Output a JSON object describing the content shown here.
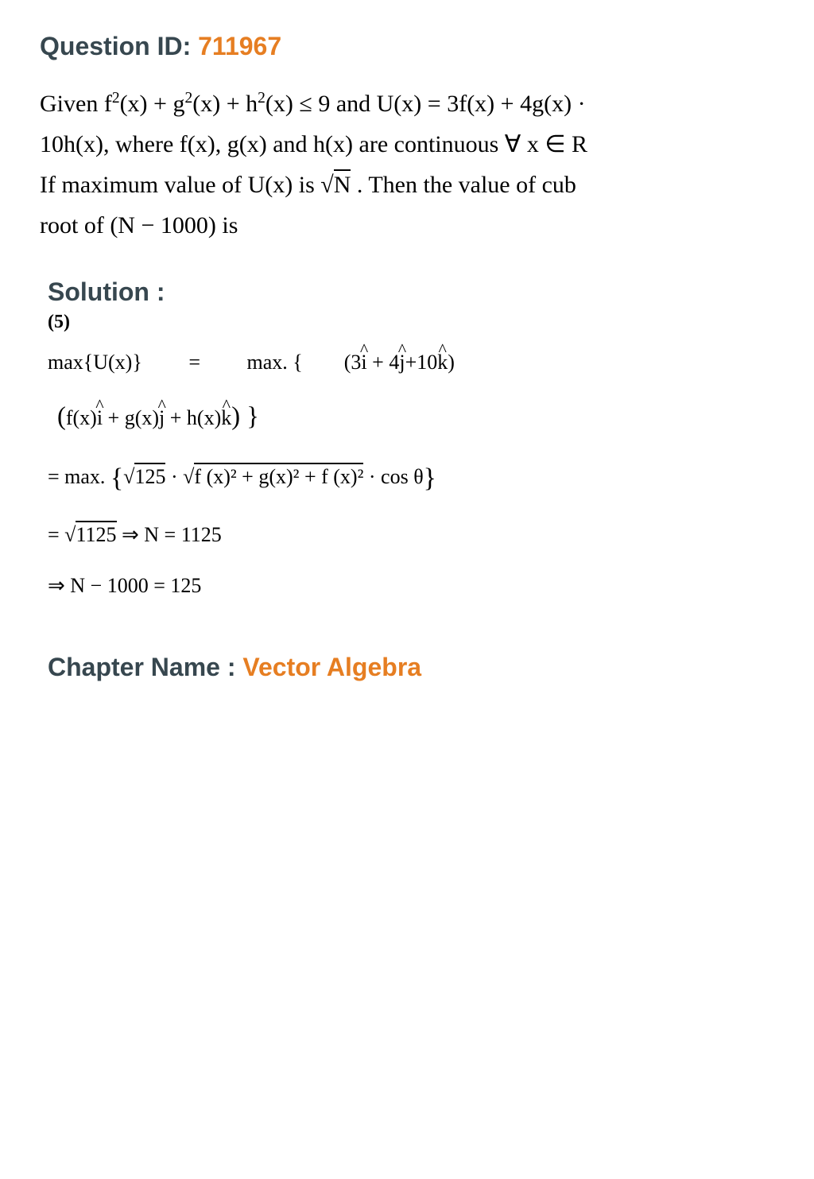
{
  "header": {
    "question_id_label": "Question ID:",
    "question_id_value": "711967"
  },
  "problem": {
    "line1_a": "Given f",
    "line1_b": "(x) + g",
    "line1_c": "(x) + h",
    "line1_d": "(x) ≤ 9 and U(x) = 3f(x) + 4g(x) ·",
    "line2": "10h(x), where f(x), g(x) and h(x) are continuous ∀ x ∈ R",
    "line3_a": "If maximum value of U(x) is ",
    "line3_sqrt": "N",
    "line3_b": " . Then the value of cub",
    "line4": "root of (N − 1000) is"
  },
  "solution": {
    "heading": "Solution :",
    "answer": "(5)",
    "l1_a": "max{U(x)}",
    "l1_eq": "=",
    "l1_b": "max. {",
    "l1_c_pre": "(3",
    "l1_c_i": "i",
    "l1_c_mid1": " + 4",
    "l1_c_j": "j",
    "l1_c_mid2": "+10",
    "l1_c_k": "k",
    "l1_c_post": ")",
    "l2_open": "(",
    "l2_a": "f(x)",
    "l2_i": "i",
    "l2_b": " + g(x)",
    "l2_j": "j",
    "l2_c": " + h(x)",
    "l2_k": "k",
    "l2_close": ") }",
    "l3_a": "= max.  ",
    "l3_sqrt1": "125",
    "l3_mid": " · ",
    "l3_sqrt2": "f (x)² + g(x)² + f (x)²",
    "l3_b": " · cos θ",
    "l4_a": "= ",
    "l4_sqrt": "1125",
    "l4_b": "  ⇒ N = 1125",
    "l5": "⇒     N − 1000 = 125"
  },
  "chapter": {
    "label": "Chapter Name :",
    "value": "Vector Algebra"
  },
  "colors": {
    "accent": "#e67e22",
    "heading": "#37474f",
    "body": "#000000",
    "background": "#ffffff"
  },
  "typography": {
    "heading_font": "Arial",
    "body_font": "Georgia",
    "heading_size_pt": 24,
    "body_size_pt": 22
  }
}
